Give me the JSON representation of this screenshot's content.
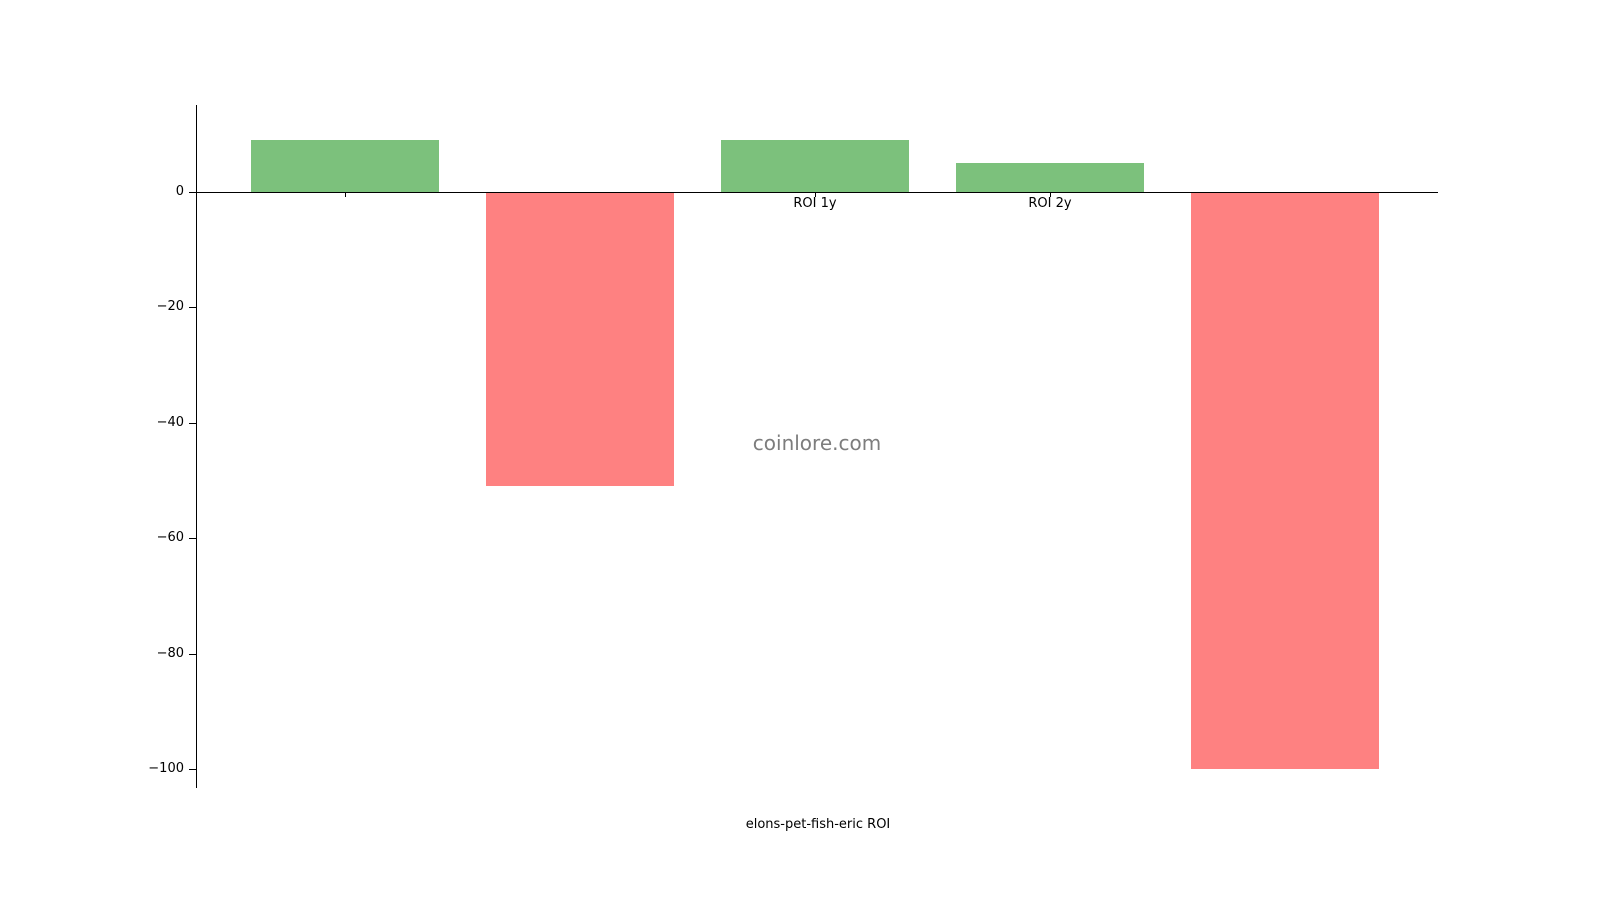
{
  "chart_data": {
    "type": "bar",
    "title": "elons-pet-fish-eric ROI",
    "watermark": "coinlore.com",
    "categories": [
      "",
      "",
      "ROI 1y",
      "ROI 2y",
      ""
    ],
    "values": [
      9,
      -51,
      9,
      5,
      -100
    ],
    "xlabel": "",
    "ylabel": "",
    "yticks": [
      0,
      -20,
      -40,
      -60,
      -80,
      -100
    ],
    "ytick_labels": [
      "0",
      "−20",
      "−40",
      "−60",
      "−80",
      "−100"
    ],
    "ylim": [
      -103,
      15
    ],
    "grid": false,
    "legend": false,
    "positive_color": "#7cc17c",
    "negative_color": "#fe8181",
    "axis_color": "#000000",
    "watermark_color": "#7d7d7d",
    "text_color": "#000000"
  }
}
